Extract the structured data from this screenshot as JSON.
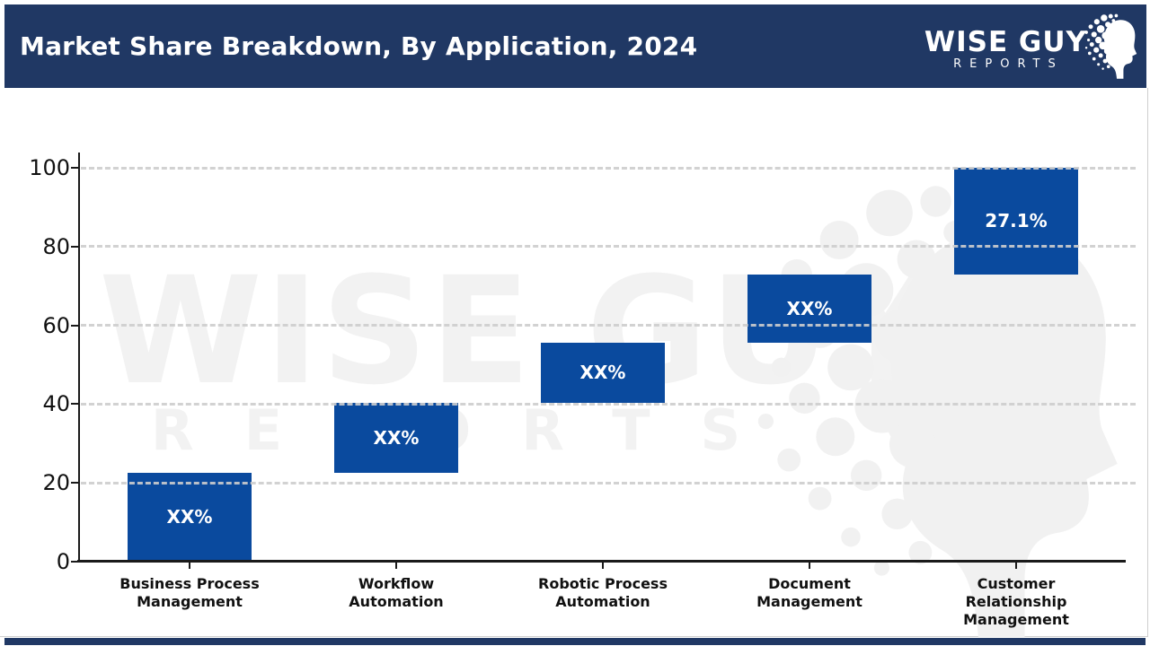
{
  "header": {
    "title": "Market Share Breakdown, By Application, 2024",
    "logo": {
      "line1": "WISE GUY",
      "line2": "REPORTS"
    },
    "bg_color": "#203864",
    "text_color": "#ffffff"
  },
  "watermark": {
    "line1": "WISE GUY",
    "line2": "REPORTS"
  },
  "chart_data": {
    "type": "bar",
    "subtype": "waterfall-segments",
    "title": "Market Share Breakdown, By Application, 2024",
    "categories": [
      "Business Process Management",
      "Workflow Automation",
      "Robotic Process Automation",
      "Document Management",
      "Customer Relationship Management"
    ],
    "category_lines": [
      [
        "Business Process",
        "Management"
      ],
      [
        "Workflow",
        "Automation"
      ],
      [
        "Robotic Process",
        "Automation"
      ],
      [
        "Document",
        "Management"
      ],
      [
        "Customer",
        "Relationship",
        "Management"
      ]
    ],
    "series": [
      {
        "name": "Market Share (%)",
        "segment_start": [
          0,
          22.6,
          40.4,
          55.6,
          72.9
        ],
        "segment_end": [
          22.6,
          40.4,
          55.6,
          72.9,
          100
        ]
      }
    ],
    "bar_labels": [
      "XX%",
      "XX%",
      "XX%",
      "XX%",
      "27.1%"
    ],
    "yticks": [
      0,
      20,
      40,
      60,
      80,
      100
    ],
    "ylim": [
      0,
      105
    ],
    "xlabel": "",
    "ylabel": "",
    "legend": false,
    "grid": "horizontal-dashed",
    "colors": {
      "bar": "#0a4a9e",
      "grid": "#d6d6d6",
      "axis": "#1a1a1a",
      "bar_label_text": "#ffffff",
      "header_navy": "#203864",
      "watermark": "#f2f2f2"
    }
  },
  "footer": {
    "bar_color": "#203864"
  }
}
